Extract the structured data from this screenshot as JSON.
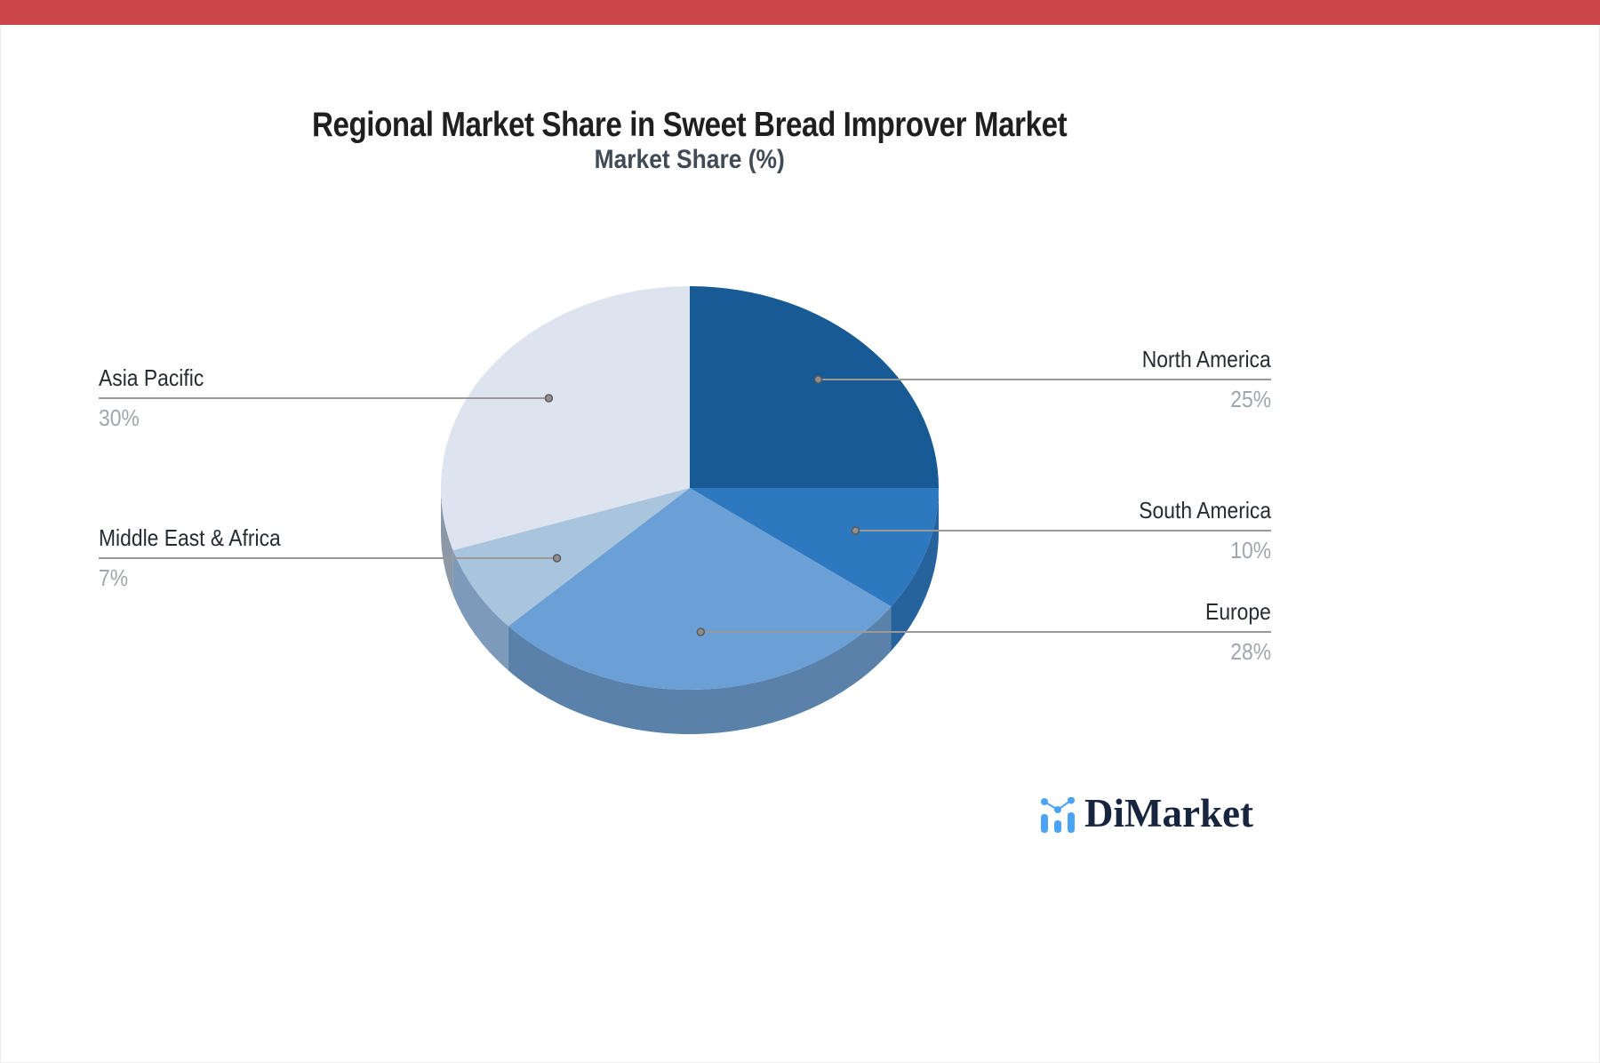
{
  "top_bar": {
    "color": "#cb4649"
  },
  "chart_data": {
    "type": "pie",
    "title": "Regional Market Share in Sweet Bread Improver Market",
    "subtitle": "Market Share (%)",
    "unit": "%",
    "start_angle_deg": 90,
    "direction": "clockwise",
    "effect": "3d-depth",
    "slices": [
      {
        "name": "North America",
        "value": 25,
        "pct_label": "25%",
        "color": "#175a94",
        "side_color": "#1d558a",
        "label_side": "right"
      },
      {
        "name": "South America",
        "value": 10,
        "pct_label": "10%",
        "color": "#2e78c0",
        "side_color": "#26639c",
        "label_side": "right"
      },
      {
        "name": "Europe",
        "value": 28,
        "pct_label": "28%",
        "color": "#6ba0d6",
        "side_color": "#5a81a9",
        "label_side": "right"
      },
      {
        "name": "Middle East & Africa",
        "value": 7,
        "pct_label": "7%",
        "color": "#a9c4dd",
        "side_color": "#7e9aba",
        "label_side": "left"
      },
      {
        "name": "Asia Pacific",
        "value": 30,
        "pct_label": "30%",
        "color": "#dee4ef",
        "side_color": "#8c98a8",
        "label_side": "left"
      }
    ],
    "legend": "none",
    "title_color": "#1f1f1f",
    "subtitle_color": "#414b55",
    "label_text_color": "#272c33",
    "pct_text_color": "#9fa6ad",
    "leader_line_color": "#999999"
  },
  "branding": {
    "logo_text": "DiMarket",
    "text_color": "#18253f",
    "icon_color": "#4ba3f7"
  }
}
